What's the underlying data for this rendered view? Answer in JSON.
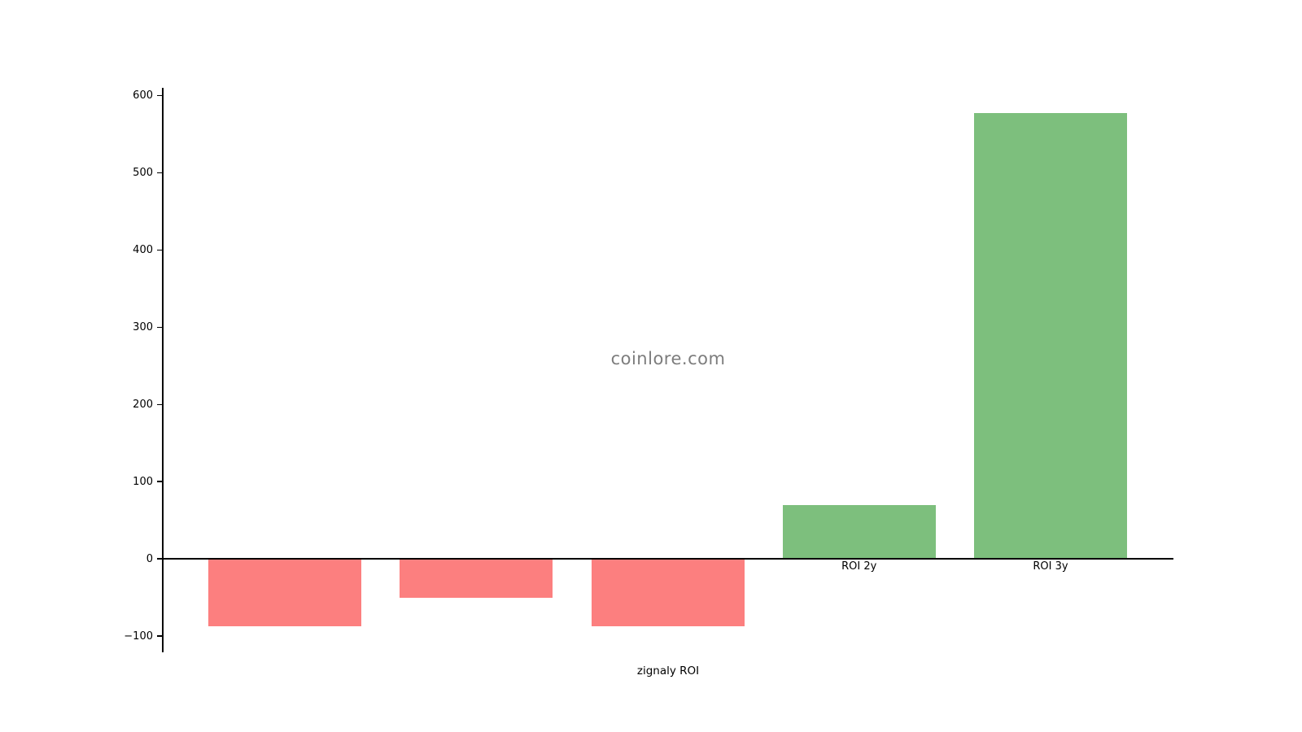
{
  "chart_data": {
    "type": "bar",
    "title": "zignaly ROI",
    "watermark": "coinlore.com",
    "categories": [
      "",
      "",
      "",
      "ROI 2y",
      "ROI 3y"
    ],
    "values": [
      -87,
      -50,
      -87,
      70,
      577
    ],
    "series": [
      {
        "name": "zignaly ROI",
        "values": [
          -87,
          -50,
          -87,
          70,
          577
        ]
      }
    ],
    "xlabel": "",
    "ylabel": "",
    "yticks": [
      600,
      500,
      400,
      300,
      200,
      100,
      0,
      -100
    ],
    "ylim": [
      -121,
      610
    ],
    "grid": false,
    "legend_position": "none",
    "positive_color": "#7dbf7d",
    "negative_color": "#fc7f7f",
    "axis_color": "#000000",
    "text_color": "#000000",
    "watermark_color": "#7d7d7d",
    "background_color": "#ffffff"
  }
}
